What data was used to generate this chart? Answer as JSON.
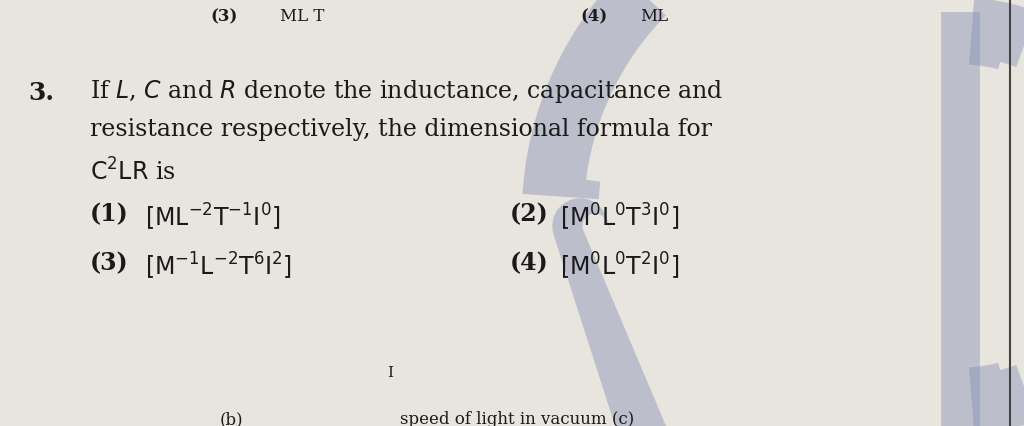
{
  "background_color": "#e8e4de",
  "text_color": "#1a1a1a",
  "question_number": "3.",
  "question_line1": "If $L$, $C$ and $R$ denote the inductance, capacitance and",
  "question_line2": "resistance respectively, the dimensional formula for",
  "question_line3": "$\\mathrm{C}^{2}\\mathrm{LR}$ is",
  "option1_label": "(1)",
  "option1_text": "$[\\mathrm{ML}^{-2}\\mathrm{T}^{-1}\\mathrm{I}^{0}]$",
  "option2_label": "(2)",
  "option2_text": "$[\\mathrm{M}^{0}\\mathrm{L}^{0}\\mathrm{T}^{3}\\mathrm{I}^{0}]$",
  "option3_label": "(3)",
  "option3_text": "$[\\mathrm{M}^{-1}\\mathrm{L}^{-2}\\mathrm{T}^{6}\\mathrm{I}^{2}]$",
  "option4_label": "(4)",
  "option4_text": "$[\\mathrm{M}^{0}\\mathrm{L}^{0}\\mathrm{T}^{2}\\mathrm{I}^{0}]$",
  "watermark_color": "#8890b8",
  "watermark_alpha": 0.45,
  "border_color": "#444444",
  "figsize": [
    10.24,
    4.26
  ],
  "dpi": 100
}
